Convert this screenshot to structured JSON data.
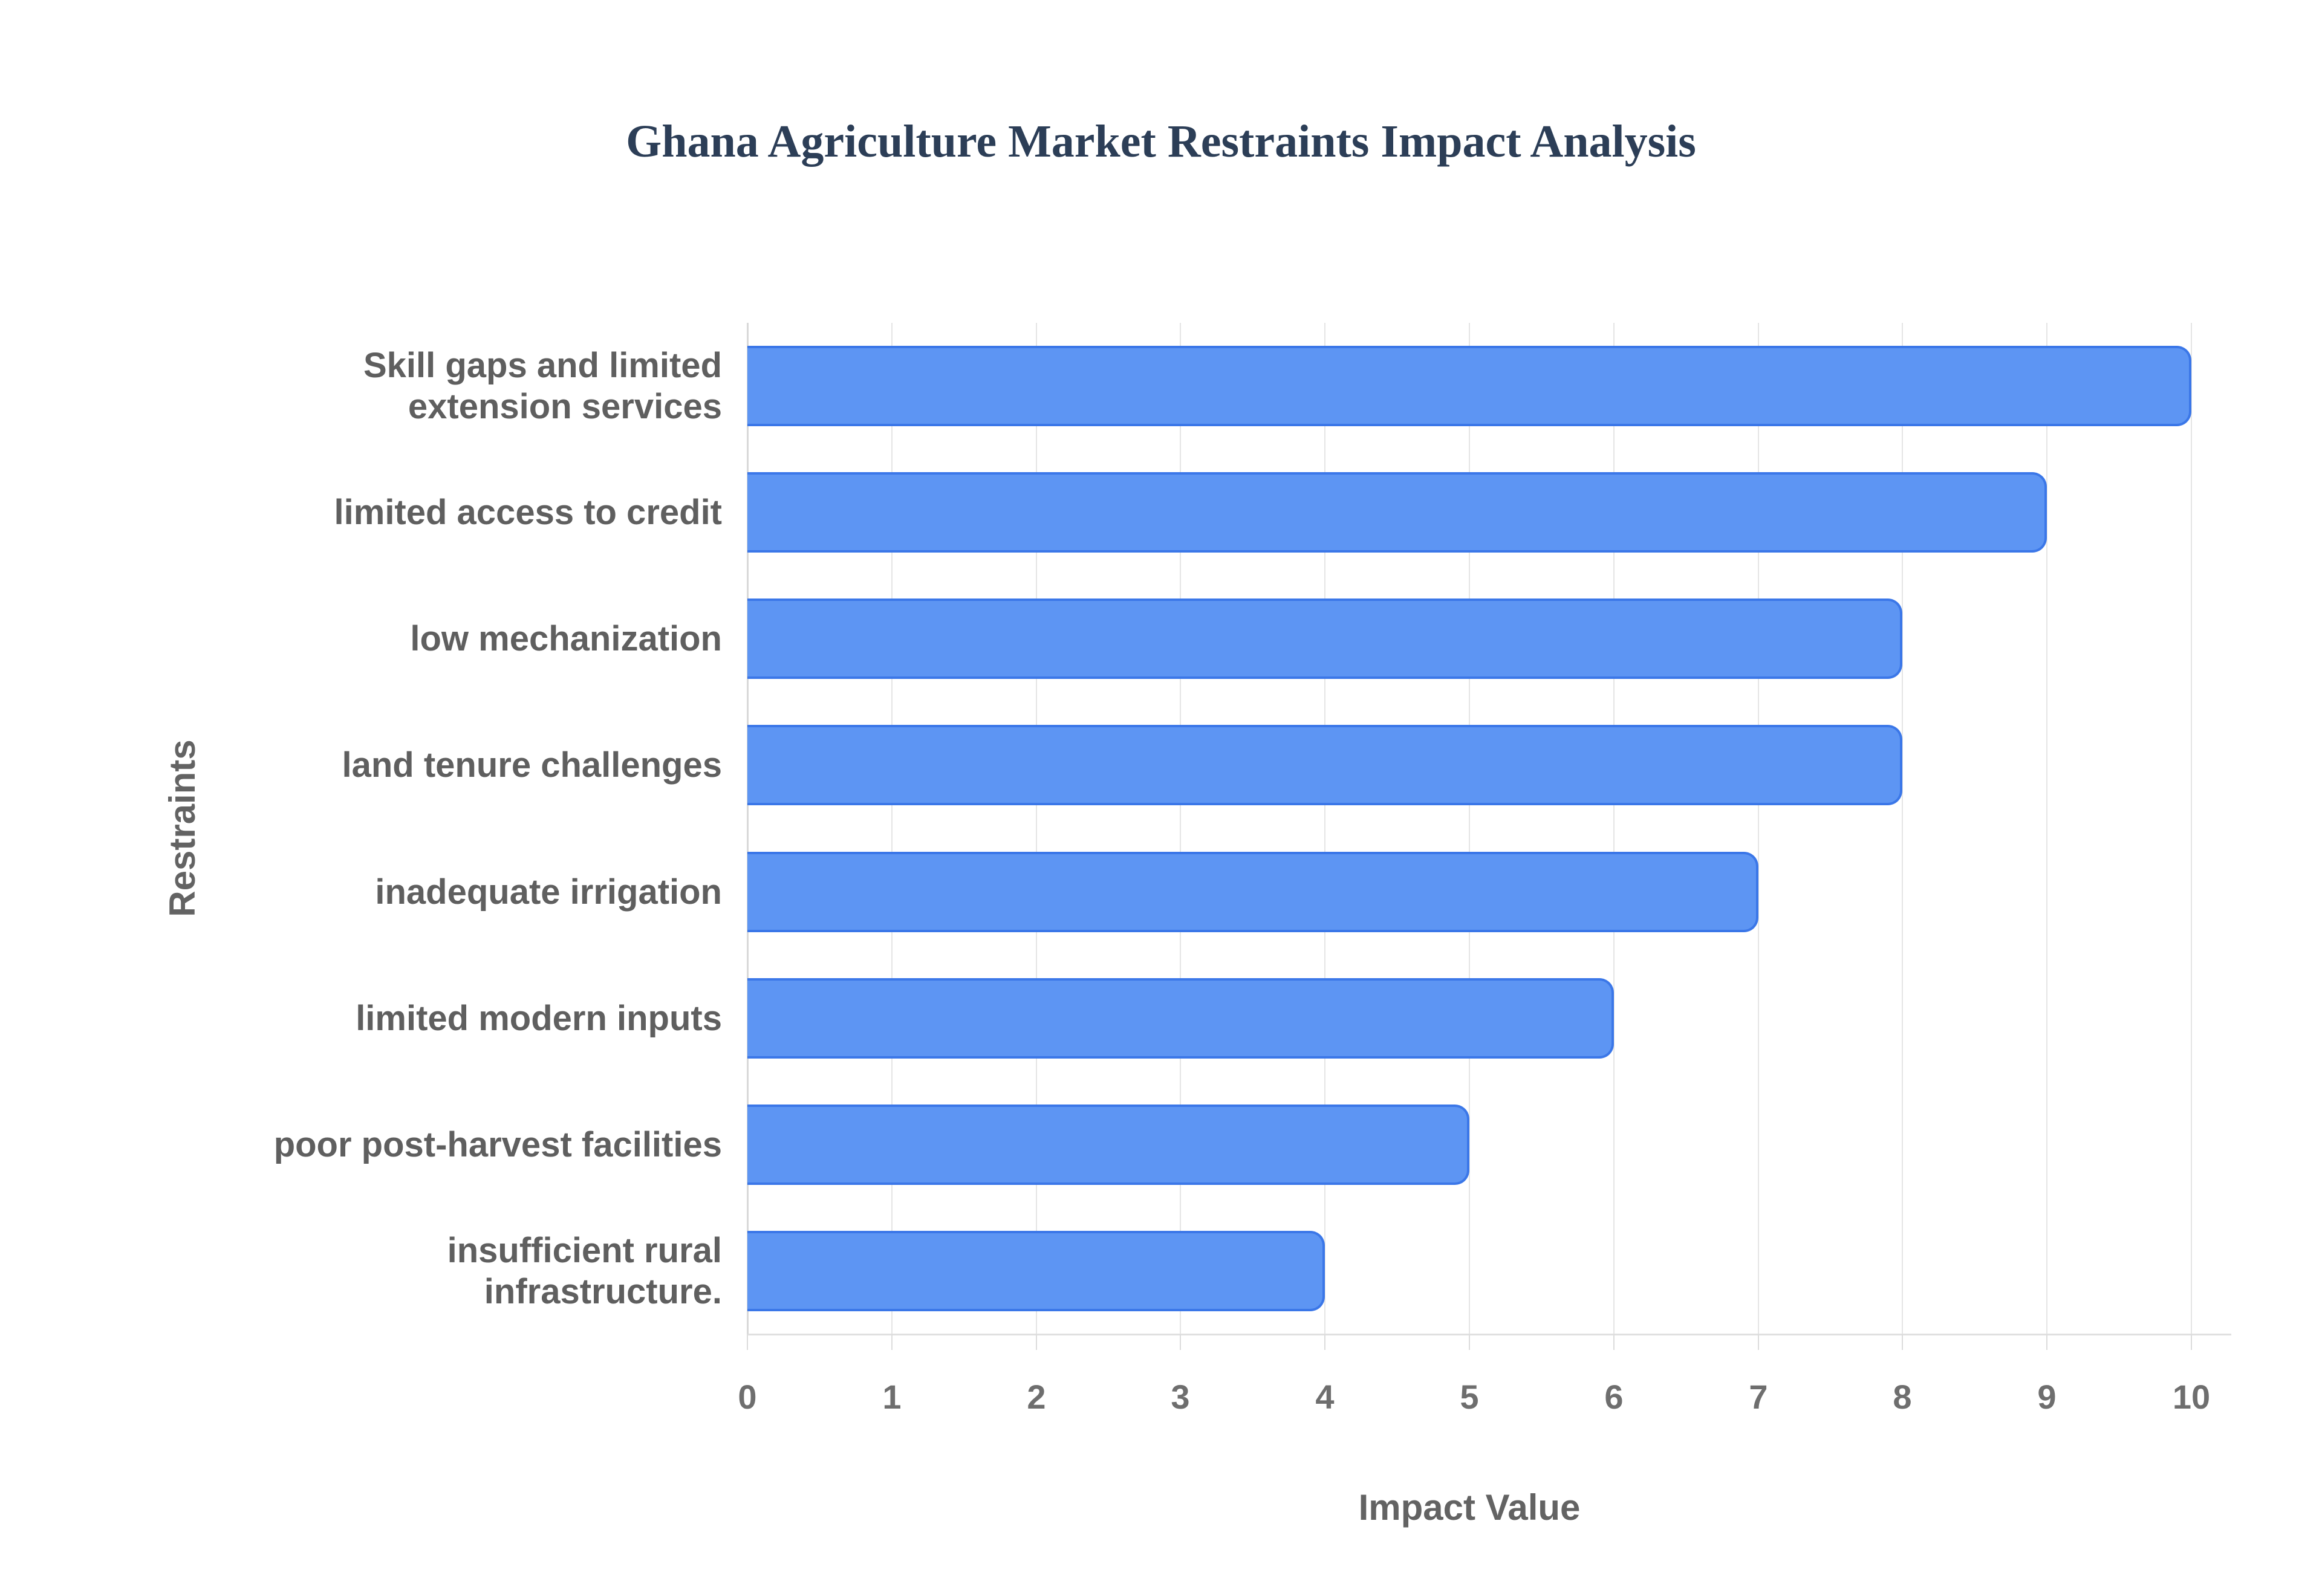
{
  "chart_data": {
    "type": "bar",
    "orientation": "horizontal",
    "title": "Ghana Agriculture Market Restraints Impact Analysis",
    "xlabel": "Impact Value",
    "ylabel": "Restraints",
    "categories": [
      "Skill gaps and limited extension services",
      "limited access to credit",
      "low mechanization",
      "land tenure challenges",
      "inadequate irrigation",
      "limited modern inputs",
      "poor post-harvest facilities",
      "insufficient rural infrastructure."
    ],
    "category_lines": [
      [
        "Skill gaps and limited",
        "extension services"
      ],
      [
        "limited access to credit"
      ],
      [
        "low mechanization"
      ],
      [
        "land tenure challenges"
      ],
      [
        "inadequate irrigation"
      ],
      [
        "limited modern inputs"
      ],
      [
        "poor post-harvest facilities"
      ],
      [
        "insufficient rural",
        "infrastructure."
      ]
    ],
    "values": [
      10,
      9,
      8,
      8,
      7,
      6,
      5,
      4
    ],
    "xlim": [
      0,
      10
    ],
    "xticks": [
      0,
      1,
      2,
      3,
      4,
      5,
      6,
      7,
      8,
      9,
      10
    ],
    "grid": true,
    "legend": false,
    "colors": {
      "bar_fill": "#5D95F3",
      "bar_border": "#3B77E8",
      "grid_line": "#E5E5E5",
      "zero_axis_line": "#D9D9D9",
      "baseline": "#E0E0E0",
      "title_text": "#2C3E57",
      "category_text": "#5F5F5F",
      "tick_text": "#6E6E6E",
      "axis_title_text": "#636363",
      "background": "#FFFFFF"
    }
  }
}
